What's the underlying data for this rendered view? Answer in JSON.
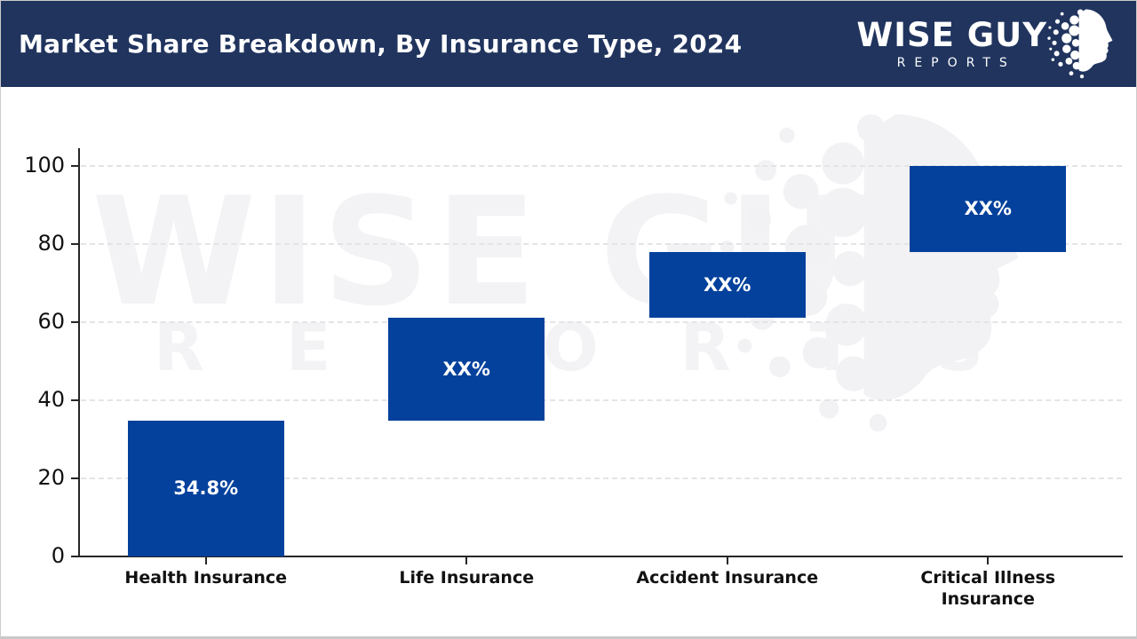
{
  "header": {
    "title": "Market Share Breakdown, By Insurance Type, 2024",
    "logo": {
      "line1": "WISE GUY",
      "line2": "REPORTS"
    }
  },
  "watermark": {
    "line1": "WISE GUY",
    "line2": "REPORTS"
  },
  "chart_data": {
    "type": "bar",
    "variant": "waterfall",
    "title": "Market Share Breakdown, By Insurance Type, 2024",
    "categories": [
      "Health Insurance",
      "Life Insurance",
      "Accident Insurance",
      "Critical Illness Insurance"
    ],
    "segments": [
      {
        "category": "Health Insurance",
        "start": 0,
        "end": 34.8,
        "label": "34.8%"
      },
      {
        "category": "Life Insurance",
        "start": 34.8,
        "end": 61,
        "label": "XX%"
      },
      {
        "category": "Accident Insurance",
        "start": 61,
        "end": 78,
        "label": "XX%"
      },
      {
        "category": "Critical Illness Insurance",
        "start": 78,
        "end": 100,
        "label": "XX%"
      }
    ],
    "yticks": [
      0,
      20,
      40,
      60,
      80,
      100
    ],
    "ylim": [
      0,
      104.5
    ],
    "xlabel": "",
    "ylabel": "",
    "grid": "horizontal-dashed",
    "legend": "none",
    "colors": {
      "bar": "#04419c",
      "bar_label": "#ffffff",
      "axis": "#262626",
      "gridline": "#e4e4e7",
      "tick_label": "#111111"
    }
  },
  "colors": {
    "header_bg": "#20345e",
    "page_bg": "#ffffff",
    "watermark": "#f3f3f6",
    "border": "#cccccc"
  }
}
